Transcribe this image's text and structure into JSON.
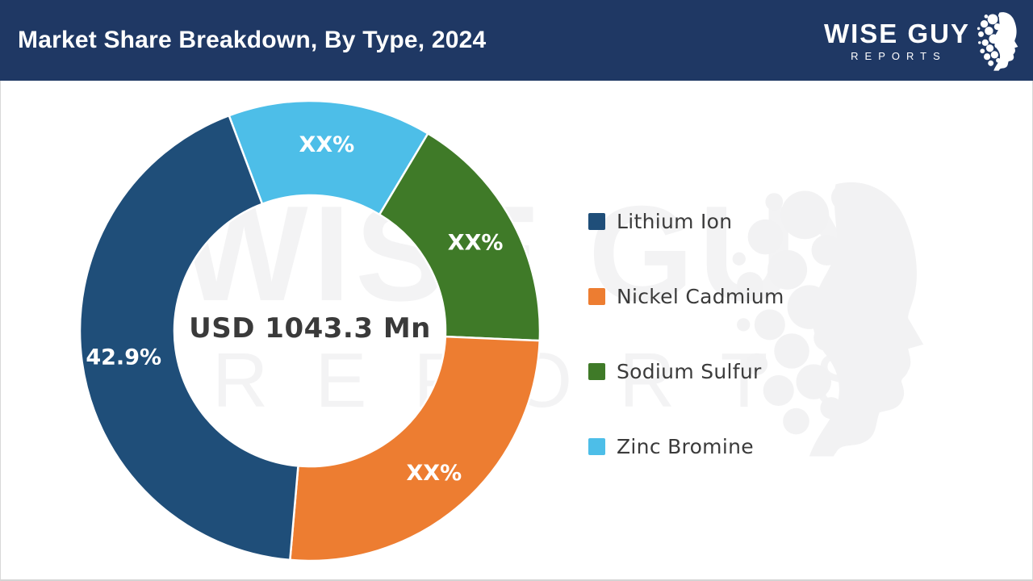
{
  "header": {
    "title": "Market Share Breakdown, By Type, 2024",
    "bg_color": "#1F3864",
    "logo": {
      "line1": "WISE GUY",
      "line2": "REPORTS"
    }
  },
  "watermark": {
    "line1": "WISE GUY",
    "line2": "REPORTS"
  },
  "chart_data": {
    "type": "pie",
    "subtype": "donut",
    "title": "Market Share Breakdown, By Type, 2024",
    "center_label": "USD 1043.3 Mn",
    "start_angle_deg": -20.6,
    "legend_position": "right",
    "segments": [
      {
        "name": "Zinc Bromine",
        "value_pct": 14.3,
        "label": "XX%",
        "color": "#4DBEE8"
      },
      {
        "name": "Sodium Sulfur",
        "value_pct": 17.1,
        "label": "XX%",
        "color": "#3F7A28"
      },
      {
        "name": "Nickel Cadmium",
        "value_pct": 25.7,
        "label": "XX%",
        "color": "#ED7D31"
      },
      {
        "name": "Lithium Ion",
        "value_pct": 42.9,
        "label": "42.9%",
        "color": "#1F4E79"
      }
    ],
    "legend": [
      {
        "label": "Lithium Ion",
        "color": "#1F4E79"
      },
      {
        "label": "Nickel Cadmium",
        "color": "#ED7D31"
      },
      {
        "label": "Sodium Sulfur",
        "color": "#3F7A28"
      },
      {
        "label": "Zinc Bromine",
        "color": "#4DBEE8"
      }
    ]
  }
}
